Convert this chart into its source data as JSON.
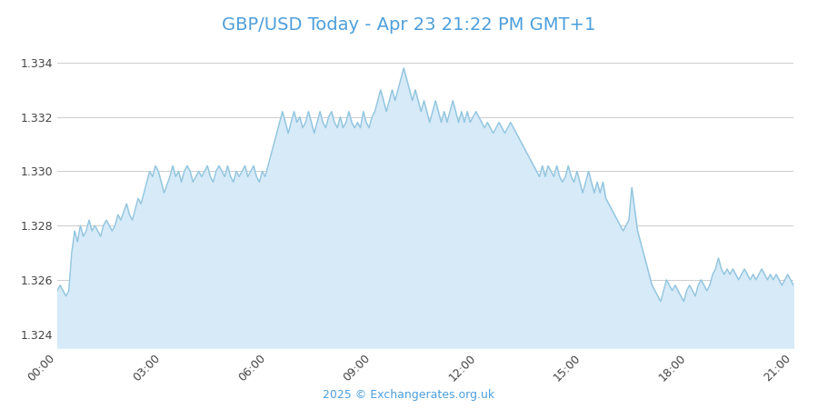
{
  "title": "GBP/USD Today - Apr 23 21:22 PM GMT+1",
  "title_color": "#4d9fdb",
  "footer": "2025 © Exchangerates.org.uk",
  "footer_color": "#4d9fdb",
  "ylim": [
    1.3235,
    1.3345
  ],
  "yticks": [
    1.324,
    1.326,
    1.328,
    1.33,
    1.332,
    1.334
  ],
  "xtick_labels": [
    "00:00",
    "03:00",
    "06:00",
    "09:00",
    "12:00",
    "15:00",
    "18:00",
    "21:00"
  ],
  "line_color": "#92c5de",
  "fill_color": "#d6eaf8",
  "bg_color": "#ffffff",
  "grid_color": "#cccccc",
  "raw_y": [
    1.3256,
    1.3258,
    1.3256,
    1.3254,
    1.3256,
    1.327,
    1.3278,
    1.3274,
    1.328,
    1.3276,
    1.3278,
    1.3282,
    1.3278,
    1.328,
    1.3278,
    1.3276,
    1.328,
    1.3282,
    1.328,
    1.3278,
    1.328,
    1.3284,
    1.3282,
    1.3285,
    1.3288,
    1.3284,
    1.3282,
    1.3286,
    1.329,
    1.3288,
    1.3292,
    1.3296,
    1.33,
    1.3298,
    1.3302,
    1.33,
    1.3296,
    1.3292,
    1.3295,
    1.3298,
    1.3302,
    1.3298,
    1.33,
    1.3296,
    1.33,
    1.3302,
    1.33,
    1.3296,
    1.3298,
    1.33,
    1.3298,
    1.33,
    1.3302,
    1.3298,
    1.3296,
    1.33,
    1.3302,
    1.33,
    1.3298,
    1.3302,
    1.3298,
    1.3296,
    1.33,
    1.3298,
    1.33,
    1.3302,
    1.3298,
    1.33,
    1.3302,
    1.3298,
    1.3296,
    1.33,
    1.3298,
    1.3302,
    1.3306,
    1.331,
    1.3314,
    1.3318,
    1.3322,
    1.3318,
    1.3314,
    1.3318,
    1.3322,
    1.3318,
    1.332,
    1.3316,
    1.3318,
    1.3322,
    1.3318,
    1.3314,
    1.3318,
    1.3322,
    1.3318,
    1.3316,
    1.332,
    1.3322,
    1.3318,
    1.3316,
    1.332,
    1.3316,
    1.3318,
    1.3322,
    1.3318,
    1.3316,
    1.3318,
    1.3316,
    1.3322,
    1.3318,
    1.3316,
    1.332,
    1.3322,
    1.3326,
    1.333,
    1.3326,
    1.3322,
    1.3326,
    1.333,
    1.3326,
    1.333,
    1.3334,
    1.3338,
    1.3334,
    1.333,
    1.3326,
    1.333,
    1.3326,
    1.3322,
    1.3326,
    1.3322,
    1.3318,
    1.3322,
    1.3326,
    1.3322,
    1.3318,
    1.3322,
    1.3318,
    1.3322,
    1.3326,
    1.3322,
    1.3318,
    1.3322,
    1.3318,
    1.3322,
    1.3318,
    1.332,
    1.3322,
    1.332,
    1.3318,
    1.3316,
    1.3318,
    1.3316,
    1.3314,
    1.3316,
    1.3318,
    1.3316,
    1.3314,
    1.3316,
    1.3318,
    1.3316,
    1.3314,
    1.3312,
    1.331,
    1.3308,
    1.3306,
    1.3304,
    1.3302,
    1.33,
    1.3298,
    1.3302,
    1.3298,
    1.3302,
    1.33,
    1.3298,
    1.3302,
    1.3298,
    1.3296,
    1.3298,
    1.3302,
    1.3298,
    1.3296,
    1.33,
    1.3296,
    1.3292,
    1.3296,
    1.33,
    1.3296,
    1.3292,
    1.3296,
    1.3292,
    1.3296,
    1.329,
    1.3288,
    1.3286,
    1.3284,
    1.3282,
    1.328,
    1.3278,
    1.328,
    1.3282,
    1.3294,
    1.3286,
    1.3278,
    1.3274,
    1.327,
    1.3266,
    1.3262,
    1.3258,
    1.3256,
    1.3254,
    1.3252,
    1.3256,
    1.326,
    1.3258,
    1.3256,
    1.3258,
    1.3256,
    1.3254,
    1.3252,
    1.3256,
    1.3258,
    1.3256,
    1.3254,
    1.3258,
    1.326,
    1.3258,
    1.3256,
    1.3258,
    1.3262,
    1.3264,
    1.3268,
    1.3264,
    1.3262,
    1.3264,
    1.3262,
    1.3264,
    1.3262,
    1.326,
    1.3262,
    1.3264,
    1.3262,
    1.326,
    1.3262,
    1.326,
    1.3262,
    1.3264,
    1.3262,
    1.326,
    1.3262,
    1.326,
    1.3262,
    1.326,
    1.3258,
    1.326,
    1.3262,
    1.326,
    1.3258
  ]
}
